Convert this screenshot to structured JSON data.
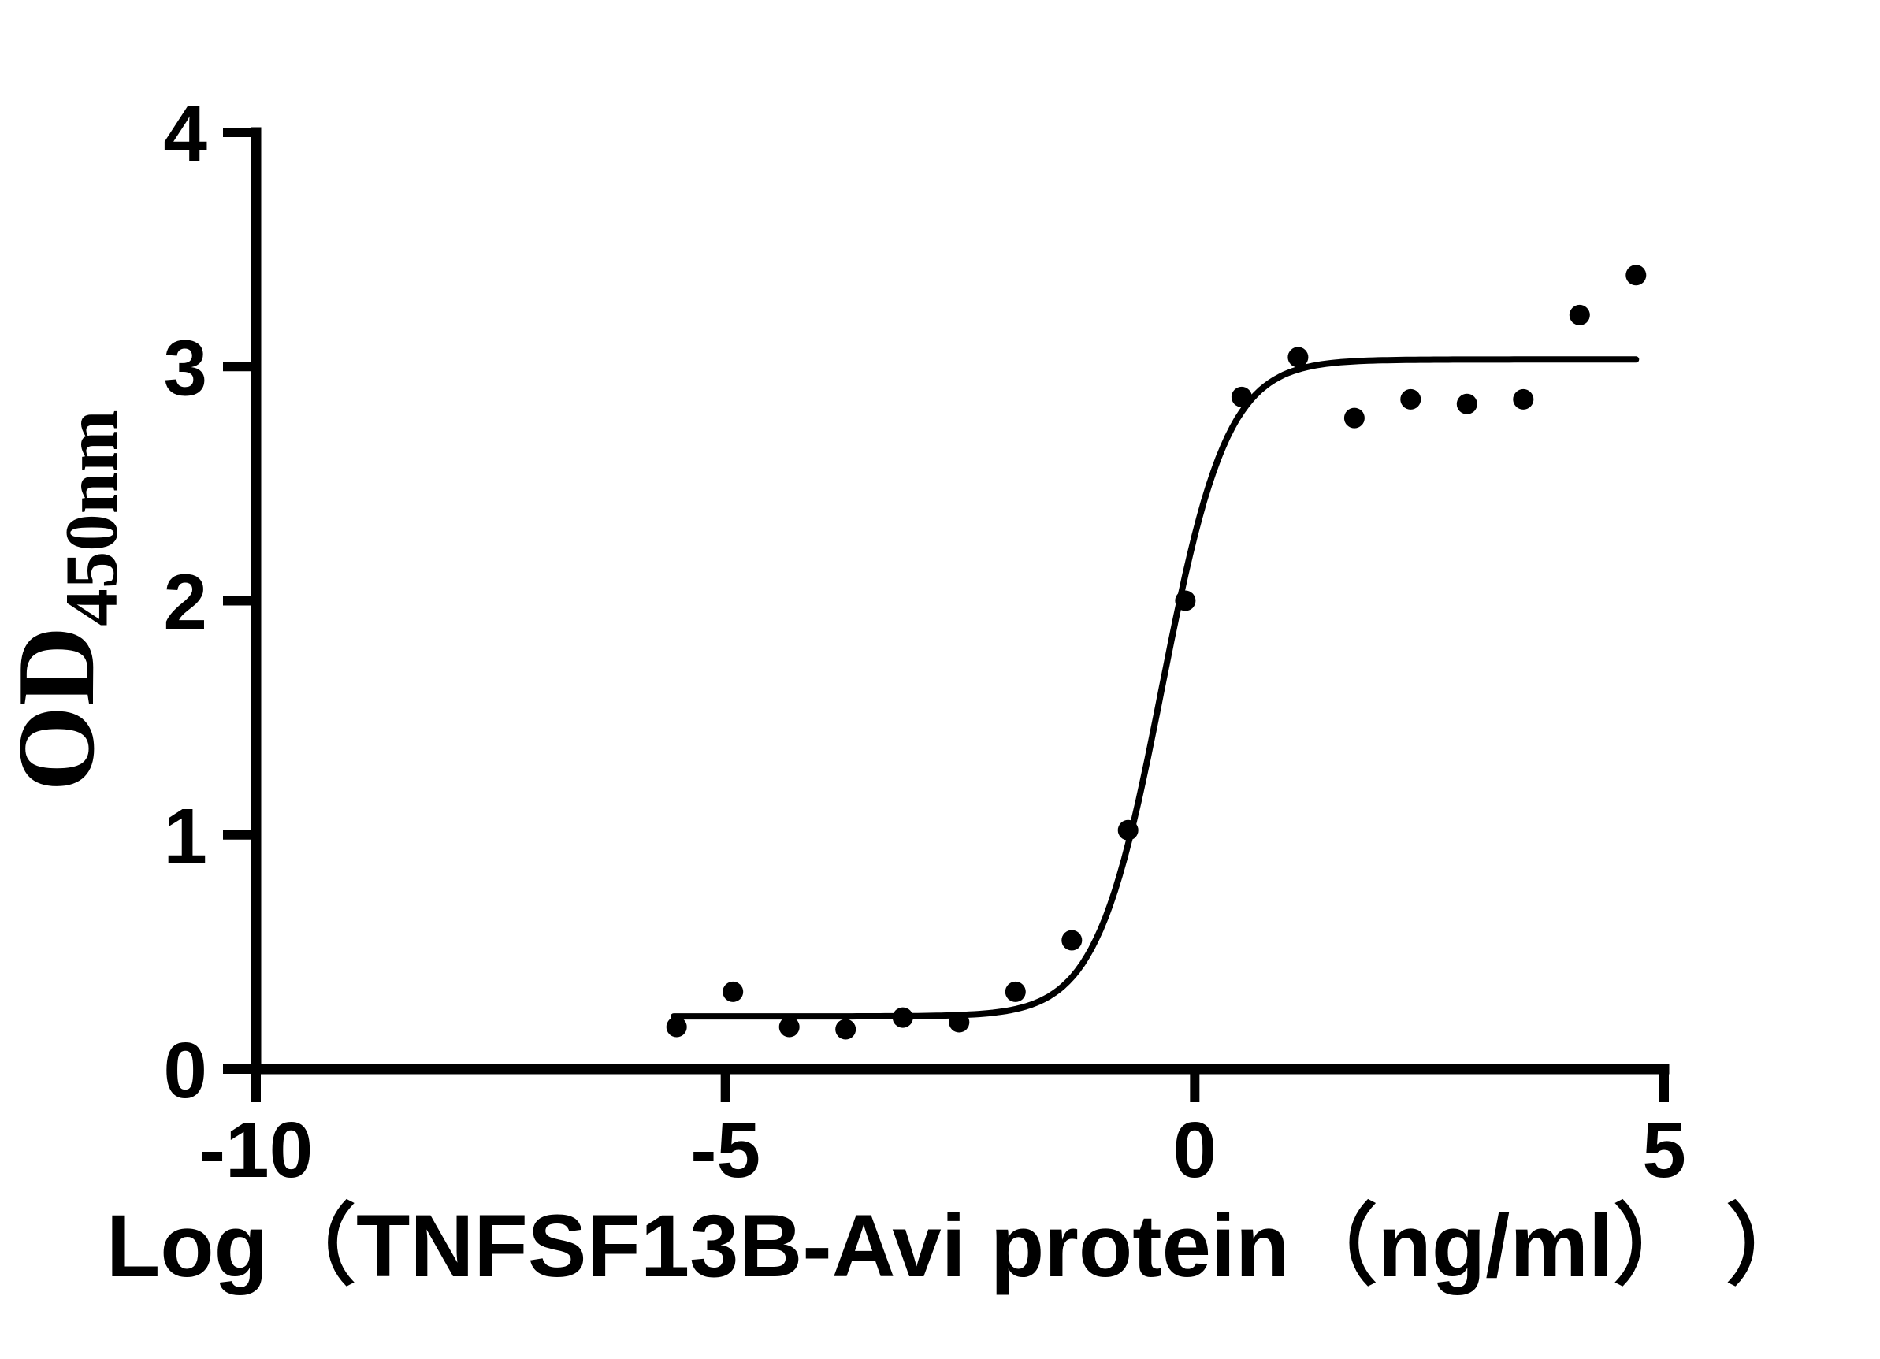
{
  "figure": {
    "background_color": "#ffffff",
    "ink_color": "#000000"
  },
  "chart_data": {
    "type": "scatter",
    "title": "",
    "xlabel": "Log（TNFSF13B-Avi protein（ng/ml） ）",
    "ylabel_main": "OD",
    "ylabel_sub": "450nm",
    "xlim": [
      -10,
      5
    ],
    "ylim": [
      0,
      4
    ],
    "x_ticks": [
      -10,
      -5,
      0,
      5
    ],
    "y_ticks": [
      0,
      1,
      2,
      3,
      4
    ],
    "grid": false,
    "legend": "none",
    "marker_color": "#000000",
    "line_color": "#000000",
    "points": [
      {
        "x": -5.52,
        "y": 0.18
      },
      {
        "x": -4.92,
        "y": 0.33
      },
      {
        "x": -4.32,
        "y": 0.18
      },
      {
        "x": -3.72,
        "y": 0.17
      },
      {
        "x": -3.11,
        "y": 0.22
      },
      {
        "x": -2.51,
        "y": 0.2
      },
      {
        "x": -1.91,
        "y": 0.33
      },
      {
        "x": -1.31,
        "y": 0.55
      },
      {
        "x": -0.71,
        "y": 1.02
      },
      {
        "x": -0.1,
        "y": 2.0
      },
      {
        "x": 0.5,
        "y": 2.87
      },
      {
        "x": 1.1,
        "y": 3.04
      },
      {
        "x": 1.7,
        "y": 2.78
      },
      {
        "x": 2.3,
        "y": 2.86
      },
      {
        "x": 2.9,
        "y": 2.84
      },
      {
        "x": 3.5,
        "y": 2.86
      },
      {
        "x": 4.1,
        "y": 3.22
      },
      {
        "x": 4.7,
        "y": 3.39
      }
    ],
    "fit_curve": {
      "model": "four_parameter_logistic",
      "bottom": 0.225,
      "top": 3.03,
      "log_ec50": -0.35,
      "hill": 1.25,
      "x_start": -5.55,
      "x_end": 4.72
    }
  }
}
